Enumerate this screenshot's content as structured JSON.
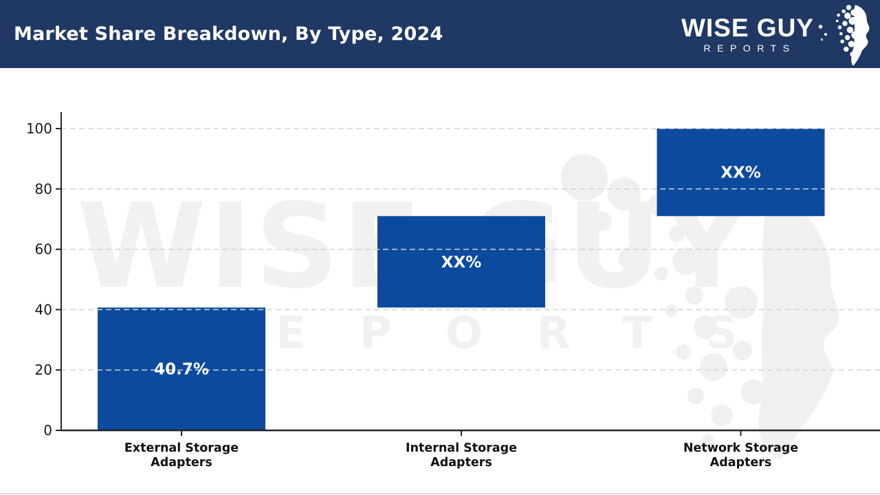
{
  "header": {
    "title": "Market Share Breakdown, By Type, 2024",
    "logo": {
      "wordmark": "WISE GUY",
      "subtitle": "REPORTS"
    }
  },
  "watermark": {
    "wordmark": "WISE GUY",
    "subtitle": "REPORTS"
  },
  "chart_data": {
    "type": "bar",
    "variant": "waterfall",
    "title": "Market Share Breakdown, By Type, 2024",
    "categories": [
      "External Storage Adapters",
      "Internal Storage Adapters",
      "Network Storage Adapters"
    ],
    "segments": [
      {
        "category": "External Storage Adapters",
        "start": 0,
        "end": 40.7,
        "label": "40.7%"
      },
      {
        "category": "Internal Storage Adapters",
        "start": 40.7,
        "end": 71,
        "label": "XX%"
      },
      {
        "category": "Network Storage Adapters",
        "start": 71,
        "end": 100,
        "label": "XX%"
      }
    ],
    "xlabel": "",
    "ylabel": "",
    "y_ticks": [
      0,
      20,
      40,
      60,
      80,
      100
    ],
    "ylim": [
      0,
      105.4
    ],
    "grid": "horizontal-dashed",
    "legend": "none",
    "colors": {
      "bar": "#0C4A9E",
      "bar_label": "#FFFFFF",
      "axis": "#262626",
      "grid": "#D3D3D3",
      "tick_label": "#1A1A1A",
      "header_bg": "#1F3864",
      "watermark": "#F0F0F0"
    }
  }
}
